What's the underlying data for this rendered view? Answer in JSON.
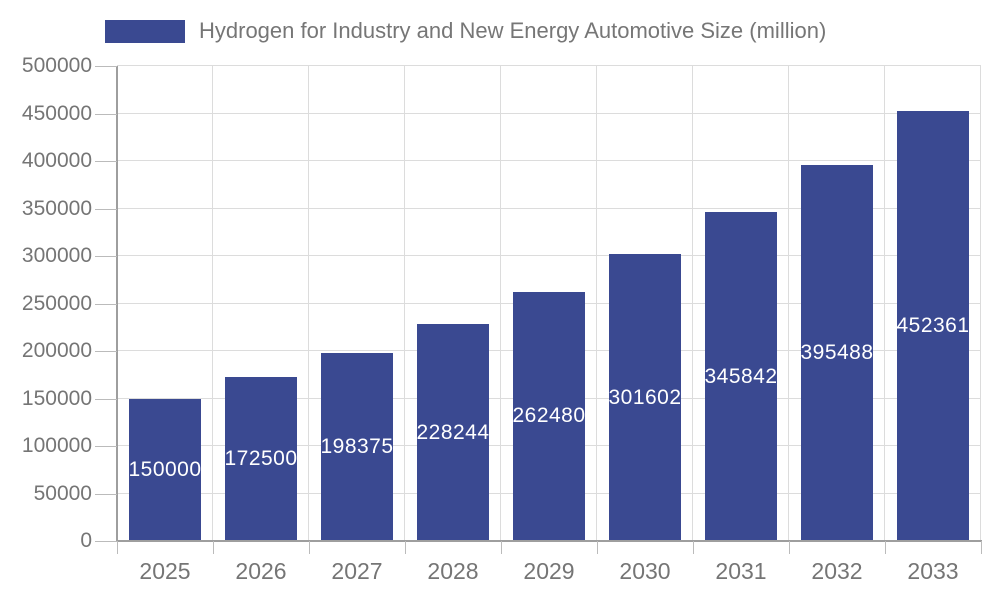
{
  "legend": {
    "label": "Hydrogen for Industry and New Energy Automotive Size (million)"
  },
  "chart_data": {
    "type": "bar",
    "title": "Hydrogen for Industry and New Energy Automotive Size (million)",
    "categories": [
      "2025",
      "2026",
      "2027",
      "2028",
      "2029",
      "2030",
      "2031",
      "2032",
      "2033"
    ],
    "values": [
      150000,
      172500,
      198375,
      228244,
      262480,
      301602,
      345842,
      395488,
      452361
    ],
    "value_labels": [
      "150000",
      "172500",
      "198375",
      "228244",
      "262480",
      "301602",
      "345842",
      "395488",
      "452361"
    ],
    "xlabel": "",
    "ylabel": "",
    "ylim": [
      0,
      500000
    ],
    "ytick_step": 50000,
    "ytick_labels": [
      "0",
      "50000",
      "100000",
      "150000",
      "200000",
      "250000",
      "300000",
      "350000",
      "400000",
      "450000",
      "500000"
    ],
    "grid": true,
    "legend_position": "top-left",
    "bar_color": "#3A4991",
    "value_label_color": "#FFFFFF",
    "grid_color": "#DCDCDC",
    "axis_color": "#9E9E9E",
    "tick_color": "#BBBBBB",
    "tick_text_color": "#757575"
  }
}
